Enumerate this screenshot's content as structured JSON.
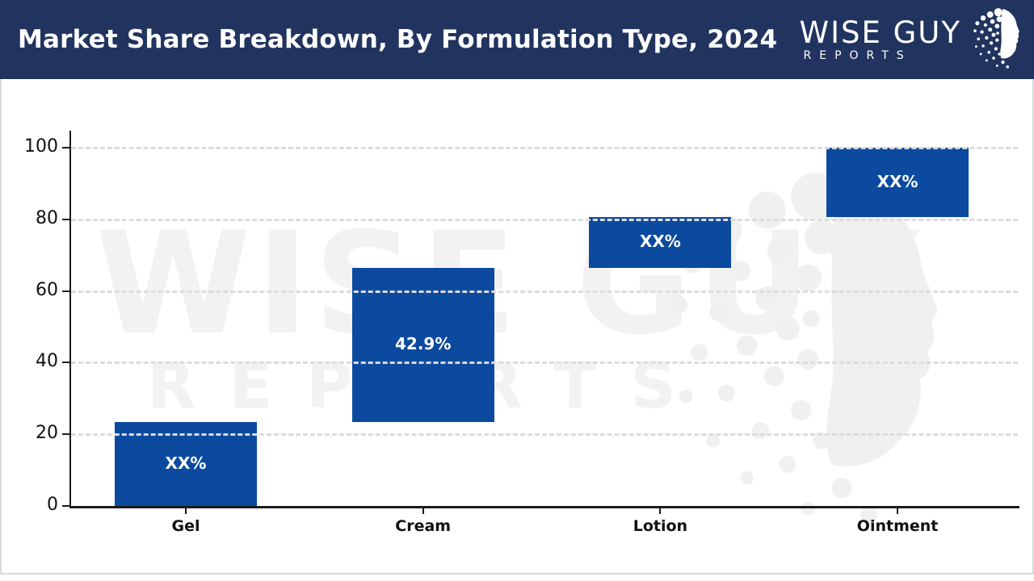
{
  "header": {
    "title": "Market Share Breakdown, By Formulation Type, 2024",
    "logo": {
      "line1": "WISE GUY",
      "line2": "REPORTS"
    }
  },
  "watermark": {
    "line1": "WISE GUY",
    "line2": "REPORTS"
  },
  "colors": {
    "header_bg": "#21345f",
    "bar_blue": "#0b4a9e",
    "grid_gray": "#dcdcdc",
    "watermark_gray": "#f2f2f3"
  },
  "chart_data": {
    "type": "bar",
    "variant": "floating-waterfall",
    "title": "Market Share Breakdown, By Formulation Type, 2024",
    "categories": [
      "Gel",
      "Cream",
      "Lotion",
      "Ointment"
    ],
    "segments": [
      {
        "category": "Gel",
        "start": 0,
        "end": 23.5,
        "value": 23.5,
        "value_label": "XX%"
      },
      {
        "category": "Cream",
        "start": 23.5,
        "end": 66.4,
        "value": 42.9,
        "value_label": "42.9%"
      },
      {
        "category": "Lotion",
        "start": 66.4,
        "end": 80.7,
        "value": 14.3,
        "value_label": "XX%"
      },
      {
        "category": "Ointment",
        "start": 80.7,
        "end": 100,
        "value": 19.3,
        "value_label": "XX%"
      }
    ],
    "ylim": [
      0,
      100
    ],
    "yticks": [
      0,
      20,
      40,
      60,
      80,
      100
    ],
    "grid": {
      "axis": "y",
      "style": "dashed",
      "color": "#dcdcdc"
    },
    "bar_color": "#0b4a9e",
    "bar_label_color": "#ffffff",
    "legend": null,
    "xlabel": "",
    "ylabel": ""
  }
}
